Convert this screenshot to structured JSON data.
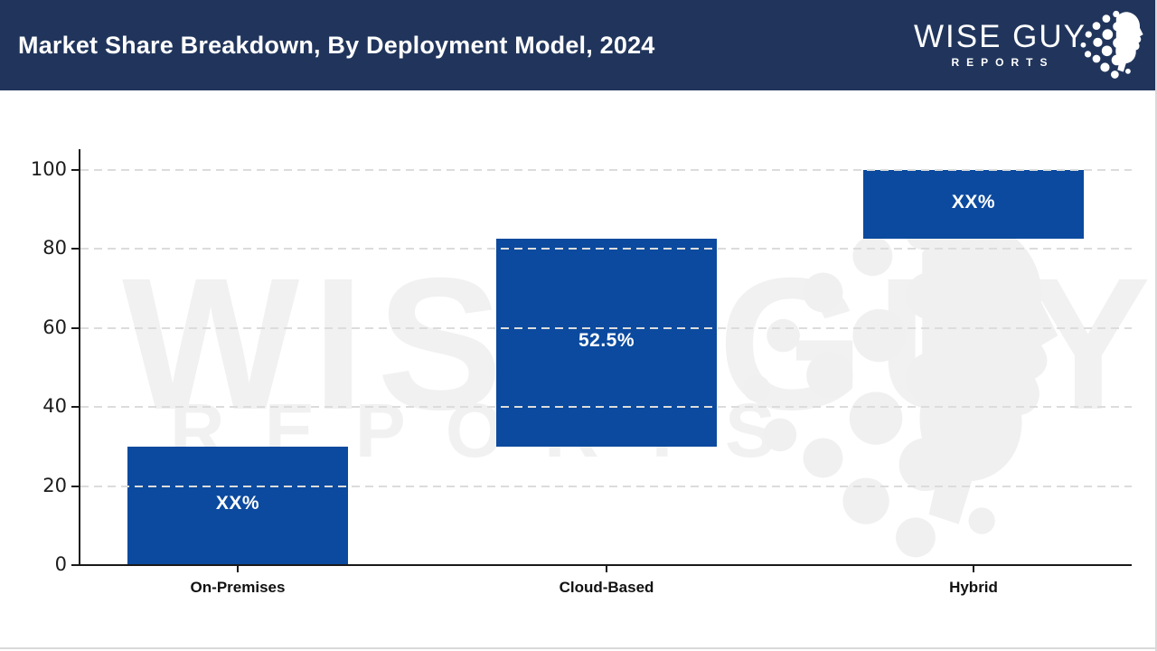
{
  "header": {
    "title": "Market Share Breakdown, By Deployment Model, 2024",
    "logo": {
      "line1": "WISE GUY",
      "line2": "REPORTS"
    }
  },
  "watermark": {
    "line1": "WISE GUY",
    "line2": "REPORTS"
  },
  "colors": {
    "header_bg": "#21355c",
    "bar": "#0b4a9e",
    "bar_label": "#ffffff",
    "gridline": "#dcdcdc",
    "axis": "#1a1a1a",
    "watermark": "#f1f1f1",
    "frame_border": "#d9d9d9"
  },
  "chart_data": {
    "type": "bar",
    "subtype": "floating-segment (stacked-step) bars",
    "title": "Market Share Breakdown, By Deployment Model, 2024",
    "categories": [
      "On-Premises",
      "Cloud-Based",
      "Hybrid"
    ],
    "segments": [
      {
        "category": "On-Premises",
        "start": 0,
        "end": 30,
        "label": "XX%"
      },
      {
        "category": "Cloud-Based",
        "start": 30,
        "end": 82.5,
        "label": "52.5%"
      },
      {
        "category": "Hybrid",
        "start": 82.5,
        "end": 100,
        "label": "XX%"
      }
    ],
    "values_displayed": [
      "XX%",
      "52.5%",
      "XX%"
    ],
    "xlabel": "",
    "ylabel": "",
    "yticks": [
      0,
      20,
      40,
      60,
      80,
      100
    ],
    "ylim": [
      0,
      105
    ],
    "grid": "horizontal dashed, drawn over bars",
    "legend": "none"
  }
}
